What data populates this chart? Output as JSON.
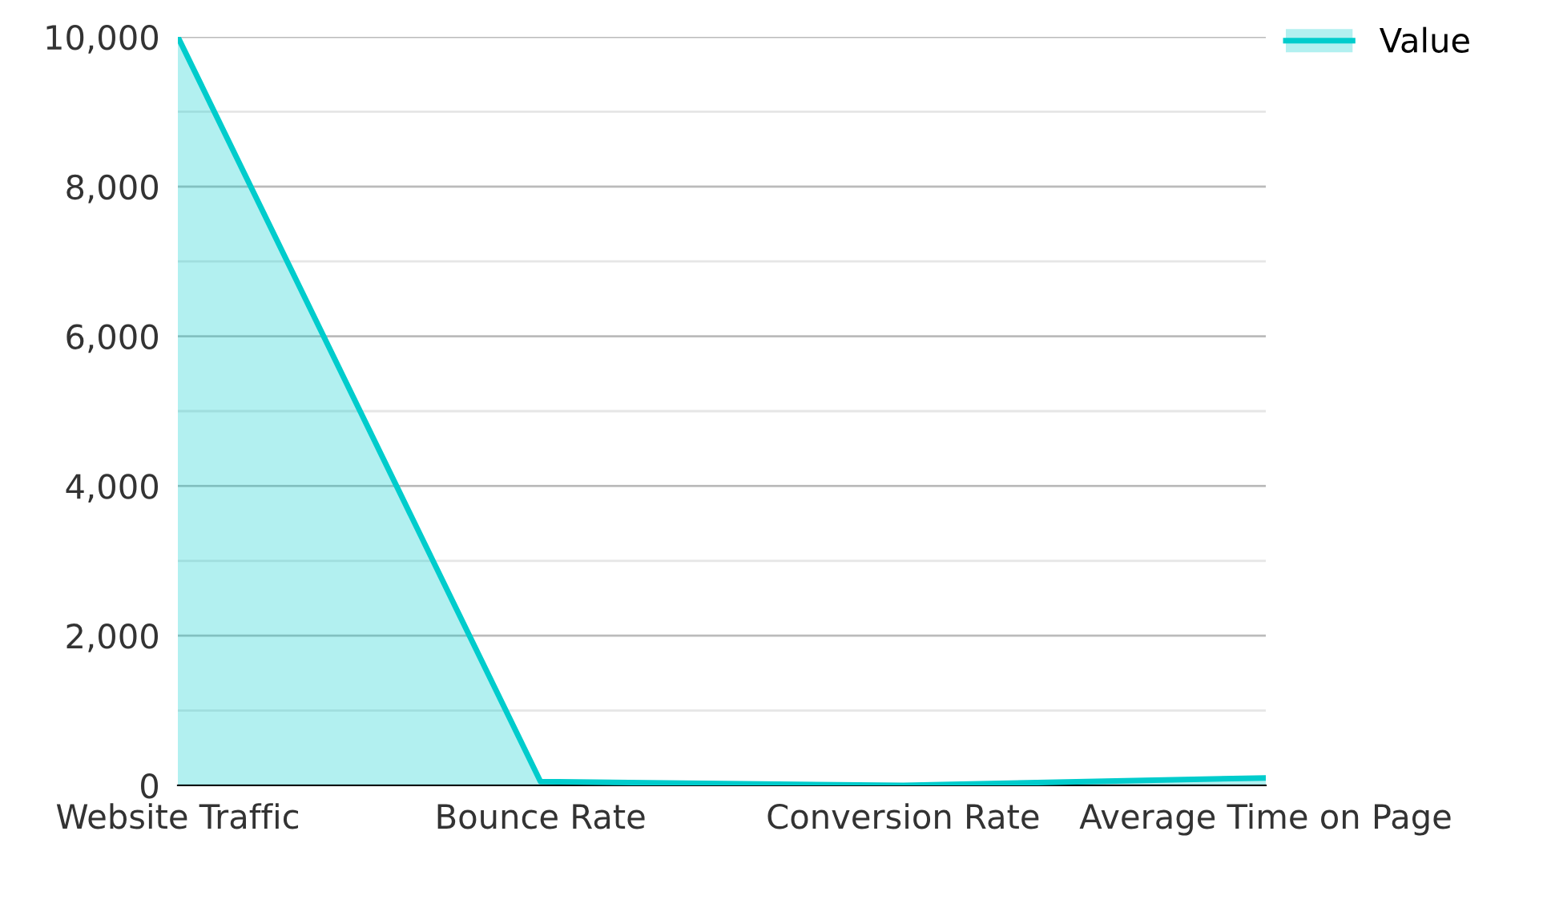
{
  "chart_data": {
    "type": "area",
    "categories": [
      "Website Traffic",
      "Bounce Rate",
      "Conversion Rate",
      "Average Time on Page"
    ],
    "series": [
      {
        "name": "Value",
        "color": "#00cccc",
        "values": [
          10000,
          50,
          0,
          100
        ]
      }
    ],
    "ylim": [
      0,
      10000
    ],
    "yticks": [
      0,
      {
        "value": 2000,
        "label": "2,000"
      },
      {
        "value": 4000,
        "label": "4,000"
      },
      {
        "value": 6000,
        "label": "6,000"
      },
      {
        "value": 8000,
        "label": "8,000"
      },
      {
        "value": 10000,
        "label": "10,000"
      }
    ],
    "grid": "y",
    "legend": "top right"
  }
}
